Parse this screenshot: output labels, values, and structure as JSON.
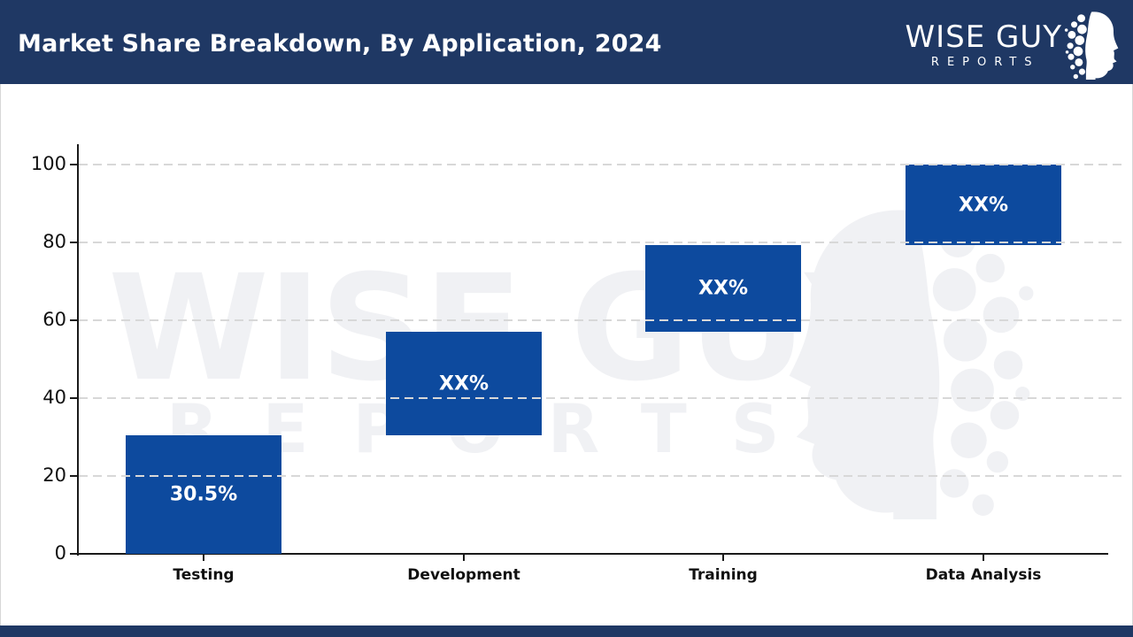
{
  "header": {
    "title": "Market Share Breakdown, By Application, 2024",
    "logo": {
      "line1": "WISE GUY",
      "line2": "REPORTS"
    }
  },
  "watermark": {
    "line1": "WISE GUY",
    "line2": "REPORTS"
  },
  "colors": {
    "header_navy": "#1f3864",
    "footer_navy": "#1f3864",
    "bar_blue": "#0d4a9e",
    "gridline_gray": "#d8d8d8",
    "axis_black": "#1a1a1a",
    "watermark_gray": "#f0f1f4",
    "label_white": "#ffffff"
  },
  "chart_data": {
    "type": "bar",
    "subtype": "waterfall",
    "title": "Market Share Breakdown, By Application, 2024",
    "categories": [
      "Testing",
      "Development",
      "Training",
      "Data Analysis"
    ],
    "segments": [
      {
        "category": "Testing",
        "start": 0,
        "end": 30.5,
        "label": "30.5%"
      },
      {
        "category": "Development",
        "start": 30.5,
        "end": 57,
        "label": "XX%"
      },
      {
        "category": "Training",
        "start": 57,
        "end": 79.3,
        "label": "XX%"
      },
      {
        "category": "Data Analysis",
        "start": 79.3,
        "end": 100,
        "label": "XX%"
      }
    ],
    "xlabel": "",
    "ylabel": "",
    "ylim": [
      0,
      100
    ],
    "yticks": [
      0,
      20,
      40,
      60,
      80,
      100
    ],
    "grid": "horizontal-dashed",
    "legend": "none"
  }
}
